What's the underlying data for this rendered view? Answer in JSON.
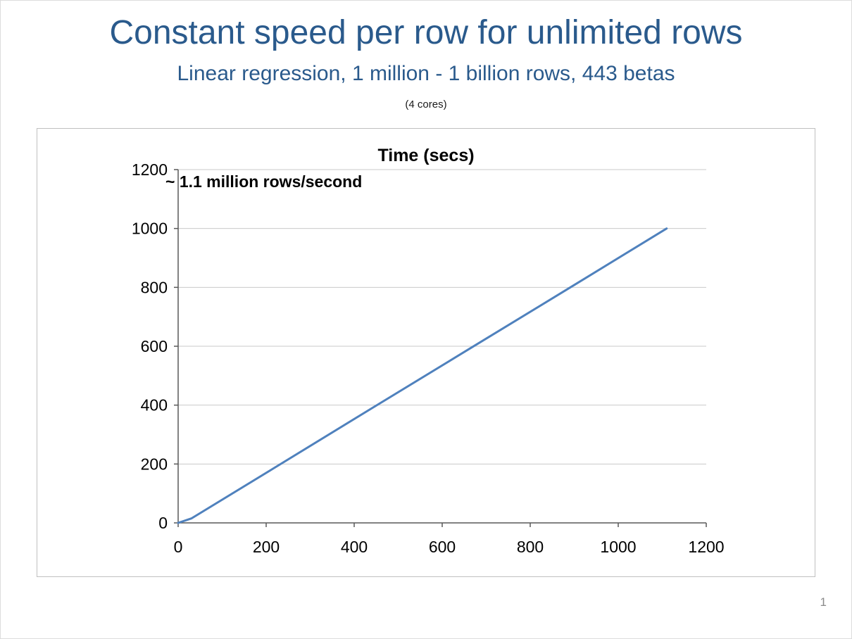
{
  "slide": {
    "title": "Constant speed per row for unlimited rows",
    "subtitle": "Linear regression, 1 million - 1 billion rows, 443 betas",
    "note": "(4 cores)",
    "page_number": "1",
    "title_color": "#2a5a8c"
  },
  "chart_data": {
    "type": "line",
    "title": "Time (secs)",
    "annotation": "~ 1.1 million rows/second",
    "xlabel": "",
    "ylabel": "Time (secs)",
    "x": [
      0,
      30,
      222,
      444,
      666,
      888,
      1110
    ],
    "y": [
      0,
      15,
      190,
      393,
      595,
      797,
      1000
    ],
    "xlim": [
      0,
      1200
    ],
    "ylim": [
      0,
      1200
    ],
    "x_ticks": [
      0,
      200,
      400,
      600,
      800,
      1000,
      1200
    ],
    "y_ticks": [
      0,
      200,
      400,
      600,
      800,
      1000,
      1200
    ],
    "grid": "horizontal",
    "legend": "none",
    "line_color": "#4f81bd",
    "grid_color": "#c9c9c9",
    "axis_color": "#595959",
    "tick_label_color": "#000000"
  }
}
